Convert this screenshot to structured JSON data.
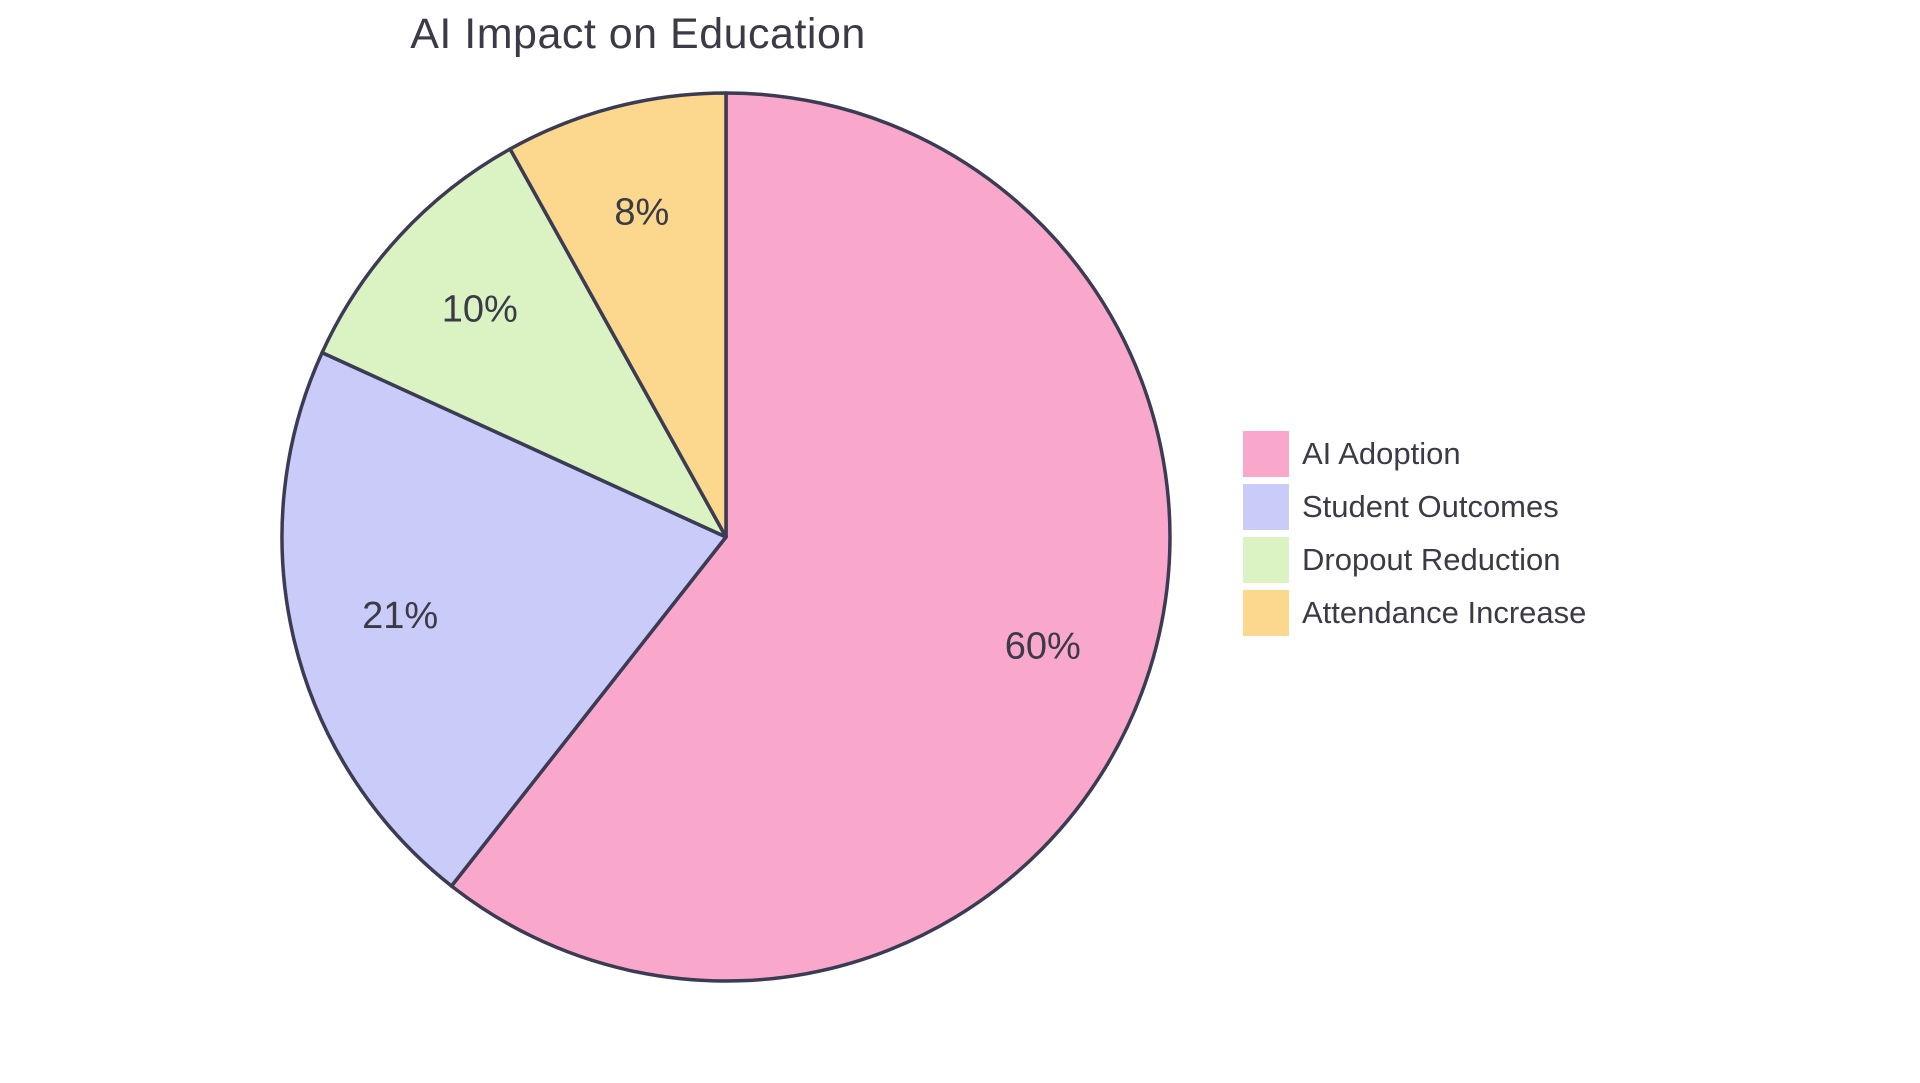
{
  "chart_data": {
    "type": "pie",
    "title": "AI Impact on Education",
    "labels": [
      "AI Adoption",
      "Student Outcomes",
      "Dropout Reduction",
      "Attendance Increase"
    ],
    "values": [
      60,
      21,
      10,
      8
    ],
    "percent_labels": [
      "60%",
      "21%",
      "10%",
      "8%"
    ],
    "colors": [
      "#F9A8CB",
      "#C9CBF8",
      "#DBF3C3",
      "#FBD88D"
    ],
    "outline_color": "#3C3B54",
    "text_color": "#3B3A46",
    "background": "#FFFFFF",
    "legend_position": "right",
    "start_angle": "12 o'clock",
    "direction": "clockwise",
    "grid": false
  }
}
